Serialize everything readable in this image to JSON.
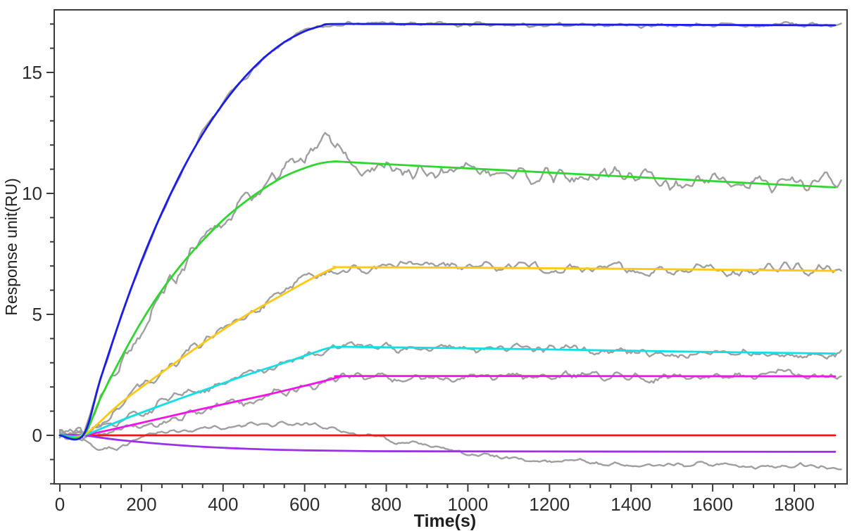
{
  "figure": {
    "background": "#ffffff",
    "axis_color": "#3b3b3b",
    "tick_label_color": "#2d2d2d",
    "raw_trace_color": "#9f9f9f"
  },
  "chart_data": {
    "type": "line",
    "title": "",
    "xlabel": "Time(s)",
    "ylabel": "Response unit(RU)",
    "xlim": [
      -14,
      1930
    ],
    "ylim": [
      -2.05,
      17.6
    ],
    "grid": false,
    "legend": "none",
    "x_major_ticks": [
      0,
      200,
      400,
      600,
      800,
      1000,
      1200,
      1400,
      1600,
      1800
    ],
    "x_minor_step": 50,
    "x_minor_max": 1900,
    "y_major_ticks": [
      0,
      5,
      10,
      15
    ],
    "y_minor_step": 1,
    "y_minor_range": [
      -2,
      17
    ],
    "association_start_s": 57,
    "dissociation_start_s": 665,
    "fit_series": [
      {
        "name": "fit-baseline-0RU",
        "color": "#fa0f0f",
        "points": [
          [
            0,
            0
          ],
          [
            1900,
            0
          ]
        ]
      },
      {
        "name": "fit-drift-negative",
        "color": "#9a30e8",
        "points": [
          [
            0,
            0
          ],
          [
            57,
            0
          ],
          [
            150,
            -0.2
          ],
          [
            300,
            -0.42
          ],
          [
            450,
            -0.55
          ],
          [
            600,
            -0.62
          ],
          [
            750,
            -0.65
          ],
          [
            900,
            -0.66
          ],
          [
            1900,
            -0.68
          ]
        ]
      },
      {
        "name": "fit-2.4RU",
        "color": "#f312e9",
        "points": [
          [
            0,
            0
          ],
          [
            57,
            0
          ],
          [
            200,
            0.52
          ],
          [
            350,
            1.1
          ],
          [
            500,
            1.65
          ],
          [
            600,
            2.05
          ],
          [
            660,
            2.3
          ],
          [
            687,
            2.42
          ],
          [
            720,
            2.45
          ],
          [
            1200,
            2.45
          ],
          [
            1900,
            2.44
          ]
        ]
      },
      {
        "name": "fit-3.6RU",
        "color": "#0fe0e6",
        "points": [
          [
            0,
            0
          ],
          [
            57,
            0
          ],
          [
            150,
            0.62
          ],
          [
            250,
            1.25
          ],
          [
            350,
            1.85
          ],
          [
            450,
            2.45
          ],
          [
            550,
            3.0
          ],
          [
            620,
            3.4
          ],
          [
            661,
            3.62
          ],
          [
            700,
            3.66
          ],
          [
            900,
            3.62
          ],
          [
            1200,
            3.55
          ],
          [
            1500,
            3.47
          ],
          [
            1900,
            3.38
          ]
        ]
      },
      {
        "name": "fit-6.9RU",
        "color": "#ffc814",
        "points": [
          [
            0,
            0
          ],
          [
            57,
            0
          ],
          [
            150,
            1.35
          ],
          [
            250,
            2.6
          ],
          [
            350,
            3.8
          ],
          [
            450,
            4.9
          ],
          [
            550,
            5.85
          ],
          [
            620,
            6.5
          ],
          [
            673,
            6.92
          ],
          [
            700,
            6.95
          ],
          [
            1000,
            6.93
          ],
          [
            1400,
            6.88
          ],
          [
            1900,
            6.8
          ]
        ]
      },
      {
        "name": "fit-11.3RU",
        "color": "#2ed62e",
        "points": [
          [
            0,
            0
          ],
          [
            57,
            0
          ],
          [
            100,
            1.55
          ],
          [
            150,
            3.2
          ],
          [
            200,
            4.7
          ],
          [
            250,
            6.0
          ],
          [
            300,
            7.1
          ],
          [
            350,
            8.05
          ],
          [
            400,
            8.9
          ],
          [
            450,
            9.6
          ],
          [
            500,
            10.2
          ],
          [
            550,
            10.7
          ],
          [
            600,
            11.05
          ],
          [
            640,
            11.25
          ],
          [
            672,
            11.32
          ],
          [
            700,
            11.3
          ],
          [
            900,
            11.12
          ],
          [
            1100,
            10.95
          ],
          [
            1300,
            10.77
          ],
          [
            1500,
            10.6
          ],
          [
            1700,
            10.42
          ],
          [
            1900,
            10.25
          ]
        ]
      },
      {
        "name": "fit-17RU",
        "color": "#1d1de8",
        "points": [
          [
            0,
            0
          ],
          [
            57,
            0
          ],
          [
            100,
            2.35
          ],
          [
            150,
            4.9
          ],
          [
            200,
            7.2
          ],
          [
            250,
            9.2
          ],
          [
            300,
            10.95
          ],
          [
            350,
            12.45
          ],
          [
            400,
            13.7
          ],
          [
            450,
            14.75
          ],
          [
            500,
            15.6
          ],
          [
            550,
            16.25
          ],
          [
            600,
            16.7
          ],
          [
            640,
            16.92
          ],
          [
            665,
            17.0
          ],
          [
            800,
            17.0
          ],
          [
            1200,
            16.98
          ],
          [
            1900,
            16.95
          ]
        ]
      }
    ],
    "raw_series": [
      {
        "name": "raw-blank-drift",
        "amp": 0.13,
        "seed": 55,
        "points": [
          [
            0,
            0
          ],
          [
            57,
            -0.05
          ],
          [
            100,
            -0.6
          ],
          [
            140,
            -0.55
          ],
          [
            180,
            -0.25
          ],
          [
            220,
            0.0
          ],
          [
            280,
            0.15
          ],
          [
            340,
            0.3
          ],
          [
            400,
            0.32
          ],
          [
            460,
            0.42
          ],
          [
            520,
            0.42
          ],
          [
            570,
            0.5
          ],
          [
            620,
            0.45
          ],
          [
            660,
            0.3
          ],
          [
            700,
            0.15
          ],
          [
            750,
            0.0
          ],
          [
            800,
            -0.15
          ],
          [
            850,
            -0.3
          ],
          [
            900,
            -0.45
          ],
          [
            950,
            -0.6
          ],
          [
            1000,
            -0.72
          ],
          [
            1100,
            -0.9
          ],
          [
            1200,
            -1.05
          ],
          [
            1300,
            -1.12
          ],
          [
            1400,
            -1.2
          ],
          [
            1500,
            -1.18
          ],
          [
            1600,
            -1.25
          ],
          [
            1700,
            -1.3
          ],
          [
            1800,
            -1.27
          ],
          [
            1900,
            -1.32
          ]
        ]
      },
      {
        "name": "raw-2.4RU",
        "amp": 0.26,
        "seed": 41,
        "points": [
          [
            0,
            0
          ],
          [
            57,
            -0.05
          ],
          [
            150,
            0.2
          ],
          [
            250,
            0.55
          ],
          [
            350,
            1.0
          ],
          [
            450,
            1.45
          ],
          [
            550,
            1.85
          ],
          [
            650,
            2.2
          ],
          [
            720,
            2.4
          ],
          [
            800,
            2.45
          ],
          [
            1900,
            2.42
          ]
        ]
      },
      {
        "name": "raw-3.6RU",
        "amp": 0.24,
        "seed": 31,
        "points": [
          [
            0,
            0
          ],
          [
            57,
            0
          ],
          [
            150,
            0.62
          ],
          [
            250,
            1.25
          ],
          [
            350,
            1.85
          ],
          [
            450,
            2.45
          ],
          [
            550,
            3.0
          ],
          [
            620,
            3.4
          ],
          [
            661,
            3.62
          ],
          [
            700,
            3.66
          ],
          [
            900,
            3.62
          ],
          [
            1200,
            3.55
          ],
          [
            1500,
            3.47
          ],
          [
            1900,
            3.38
          ]
        ]
      },
      {
        "name": "raw-6.9RU",
        "amp": 0.3,
        "seed": 21,
        "points": [
          [
            0,
            0
          ],
          [
            57,
            0
          ],
          [
            150,
            1.35
          ],
          [
            250,
            2.6
          ],
          [
            350,
            3.8
          ],
          [
            450,
            4.9
          ],
          [
            550,
            5.85
          ],
          [
            620,
            6.5
          ],
          [
            673,
            6.92
          ],
          [
            700,
            6.95
          ],
          [
            1000,
            6.93
          ],
          [
            1400,
            6.88
          ],
          [
            1900,
            6.8
          ]
        ]
      },
      {
        "name": "raw-11.3RU",
        "amp": 0.45,
        "seed": 13,
        "points": [
          [
            0,
            0
          ],
          [
            57,
            0
          ],
          [
            100,
            1.5
          ],
          [
            150,
            3.1
          ],
          [
            200,
            4.6
          ],
          [
            250,
            5.95
          ],
          [
            300,
            7.1
          ],
          [
            350,
            8.1
          ],
          [
            400,
            9.0
          ],
          [
            450,
            9.75
          ],
          [
            500,
            10.45
          ],
          [
            550,
            11.1
          ],
          [
            600,
            11.7
          ],
          [
            635,
            12.1
          ],
          [
            660,
            12.0
          ],
          [
            690,
            11.6
          ],
          [
            720,
            11.2
          ],
          [
            760,
            10.9
          ],
          [
            800,
            11.0
          ],
          [
            900,
            10.95
          ],
          [
            1000,
            10.9
          ],
          [
            1100,
            10.85
          ],
          [
            1200,
            10.8
          ],
          [
            1400,
            10.7
          ],
          [
            1600,
            10.55
          ],
          [
            1900,
            10.5
          ]
        ]
      },
      {
        "name": "raw-17RU",
        "amp": 0.13,
        "seed": 7,
        "points": [
          [
            0,
            0
          ],
          [
            57,
            0
          ],
          [
            100,
            2.35
          ],
          [
            150,
            4.9
          ],
          [
            200,
            7.2
          ],
          [
            250,
            9.2
          ],
          [
            300,
            10.95
          ],
          [
            350,
            12.45
          ],
          [
            400,
            13.7
          ],
          [
            450,
            14.75
          ],
          [
            500,
            15.6
          ],
          [
            550,
            16.25
          ],
          [
            600,
            16.7
          ],
          [
            640,
            16.92
          ],
          [
            665,
            17.0
          ],
          [
            800,
            17.0
          ],
          [
            1200,
            16.98
          ],
          [
            1900,
            16.95
          ]
        ]
      }
    ]
  }
}
